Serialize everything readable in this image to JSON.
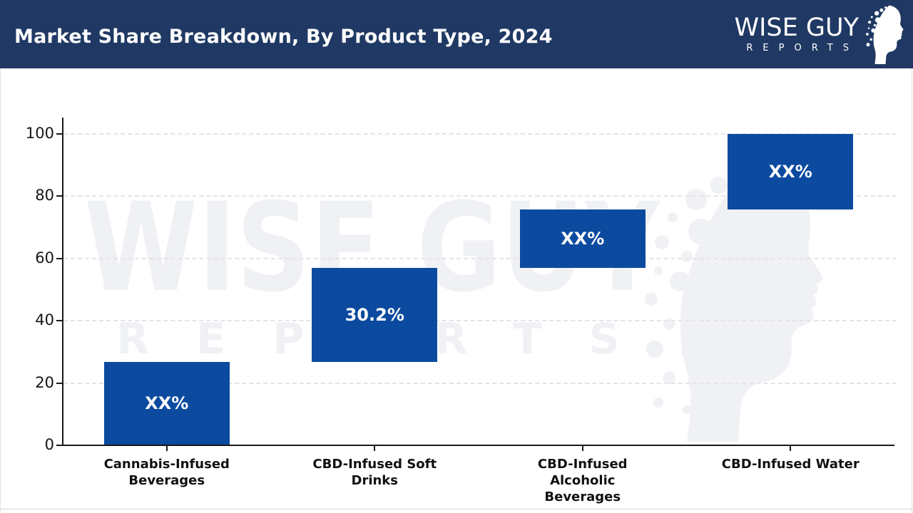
{
  "header": {
    "title": "Market Share Breakdown, By Product Type, 2024",
    "bg_color": "#203964",
    "logo": {
      "line1": "WISE GUY",
      "line2": "REPORTS"
    }
  },
  "watermark": {
    "line1": "WISE GUY",
    "line2": "REPORTS"
  },
  "chart_data": {
    "type": "bar",
    "subtype": "floating-waterfall",
    "title": "Market Share Breakdown, By Product Type, 2024",
    "categories": [
      "Cannabis-Infused Beverages",
      "CBD-Infused Soft Drinks",
      "CBD-Infused Alcoholic Beverages",
      "CBD-Infused Water"
    ],
    "category_labels": [
      "Cannabis-Infused\nBeverages",
      "CBD-Infused Soft\nDrinks",
      "CBD-Infused\nAlcoholic\nBeverages",
      "CBD-Infused Water"
    ],
    "bars": [
      {
        "label": "XX%",
        "start": 0,
        "end": 26.8
      },
      {
        "label": "30.2%",
        "start": 26.8,
        "end": 57.0
      },
      {
        "label": "XX%",
        "start": 57.0,
        "end": 75.8
      },
      {
        "label": "XX%",
        "start": 75.8,
        "end": 100
      }
    ],
    "ylim": [
      0,
      100
    ],
    "yticks": [
      0,
      20,
      40,
      60,
      80,
      100
    ],
    "xlabel": "",
    "ylabel": "",
    "grid": "horizontal-dashed",
    "legend": "none",
    "bar_color": "#0b4a9f",
    "bar_label_color": "#ffffff"
  }
}
